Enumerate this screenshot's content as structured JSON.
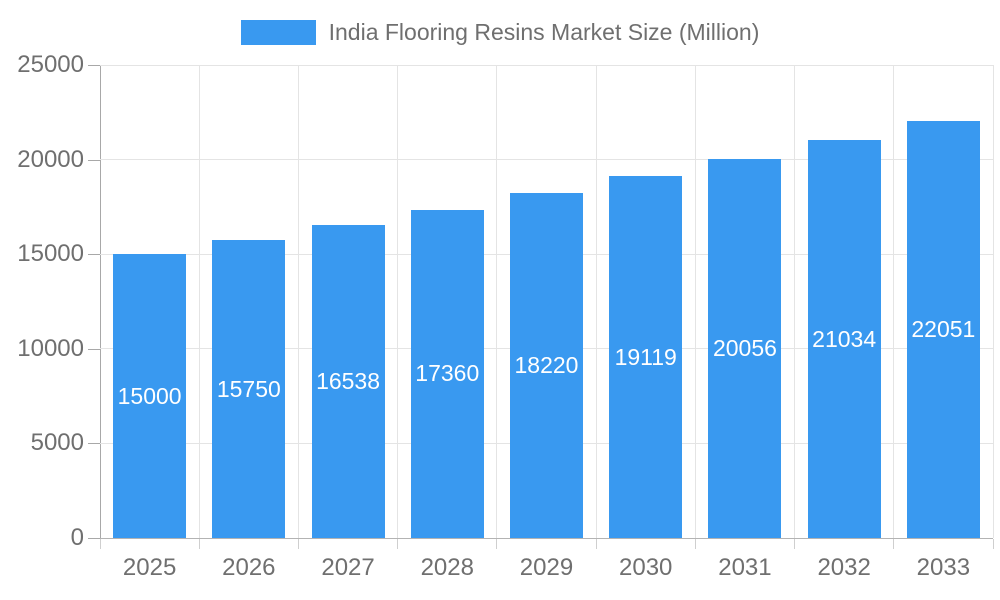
{
  "chart_data": {
    "type": "bar",
    "title": "",
    "legend": {
      "label": "India Flooring Resins Market Size (Million)",
      "position": "top"
    },
    "categories": [
      "2025",
      "2026",
      "2027",
      "2028",
      "2029",
      "2030",
      "2031",
      "2032",
      "2033"
    ],
    "series": [
      {
        "name": "India Flooring Resins Market Size (Million)",
        "values": [
          15000,
          15750,
          16538,
          17360,
          18220,
          19119,
          20056,
          21034,
          22051
        ]
      }
    ],
    "xlabel": "",
    "ylabel": "",
    "ylim": [
      0,
      25000
    ],
    "yticks": [
      0,
      5000,
      10000,
      15000,
      20000,
      25000
    ],
    "grid": true,
    "bar_value_labels_visible": true,
    "colors": {
      "bar": "#3999f0",
      "bar_label_text": "#ffffff",
      "grid": "#e4e4e4",
      "axis": "#a8a8a8",
      "tick_text": "#6f6f6f",
      "legend_text": "#6f6f6f",
      "background": "#ffffff"
    }
  }
}
